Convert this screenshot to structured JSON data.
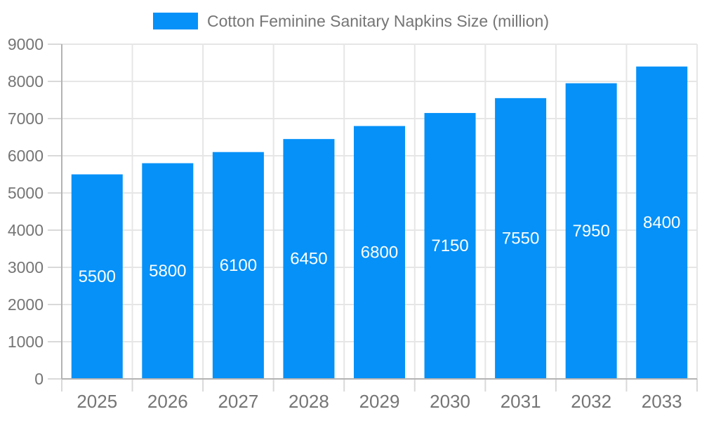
{
  "chart_data": {
    "type": "bar",
    "title": "Cotton Feminine Sanitary Napkins Size (million)",
    "categories": [
      "2025",
      "2026",
      "2027",
      "2028",
      "2029",
      "2030",
      "2031",
      "2032",
      "2033"
    ],
    "values": [
      5500,
      5800,
      6100,
      6450,
      6800,
      7150,
      7550,
      7950,
      8400
    ],
    "xlabel": "",
    "ylabel": "",
    "ylim": [
      0,
      9000
    ],
    "ytick_step": 1000,
    "yticks": [
      "0",
      "1000",
      "2000",
      "3000",
      "4000",
      "5000",
      "6000",
      "7000",
      "8000",
      "9000"
    ],
    "grid": true,
    "legend_position": "top-center",
    "value_label_position": "inside-center"
  },
  "colors": {
    "bar": "#0591f8",
    "grid": "#e6e6e6",
    "tick": "#d9d9d9",
    "axis": "#b3b3b3",
    "text": "#757575",
    "value_label": "#ffffff",
    "background": "#ffffff"
  }
}
